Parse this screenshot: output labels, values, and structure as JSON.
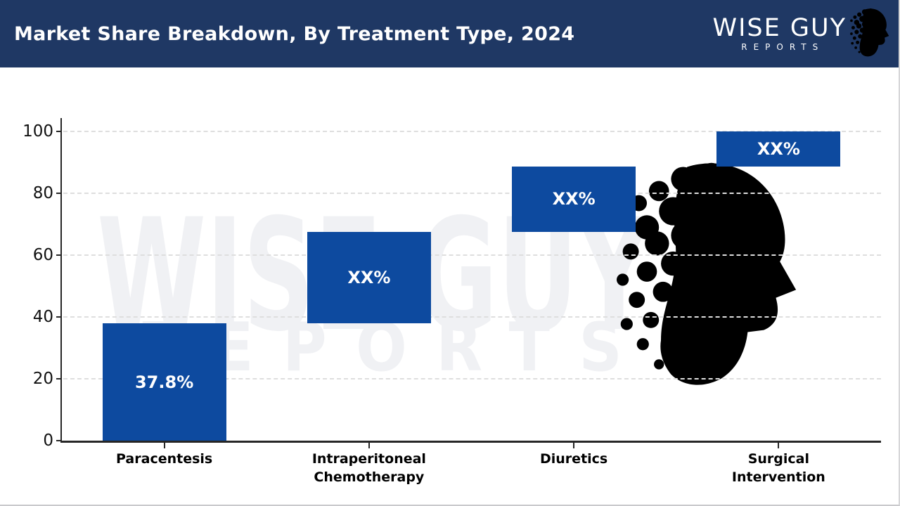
{
  "header": {
    "title": "Market Share Breakdown, By Treatment Type, 2024",
    "logo": {
      "line1": "WISE GUY",
      "line2": "REPORTS"
    }
  },
  "watermark": {
    "line1": "WISE GUY",
    "line2": "REPORTS"
  },
  "colors": {
    "header_bg": "#1f3864",
    "bar": "#0d4a9f",
    "grid": "#dedede",
    "axis": "#262626",
    "bar_label": "#ffffff",
    "watermark": "#f0f1f4"
  },
  "chart_data": {
    "type": "bar",
    "subtype": "cumulative-waterfall",
    "title": "Market Share Breakdown, By Treatment Type, 2024",
    "categories": [
      "Paracentesis",
      "Intraperitoneal\nChemotherapy",
      "Diuretics",
      "Surgical\nIntervention"
    ],
    "series": [
      {
        "name": "Market Share",
        "segments": [
          {
            "from": 0,
            "to": 37.8,
            "label": "37.8%"
          },
          {
            "from": 37.8,
            "to": 67.5,
            "label": "XX%"
          },
          {
            "from": 67.5,
            "to": 88.5,
            "label": "XX%"
          },
          {
            "from": 88.5,
            "to": 100,
            "label": "XX%"
          }
        ]
      }
    ],
    "xlabel": "",
    "ylabel": "",
    "ylim": [
      0,
      100
    ],
    "yticks": [
      "0",
      "20",
      "40",
      "60",
      "80",
      "100"
    ],
    "grid": "horizontal-dashed",
    "legend": "none"
  }
}
